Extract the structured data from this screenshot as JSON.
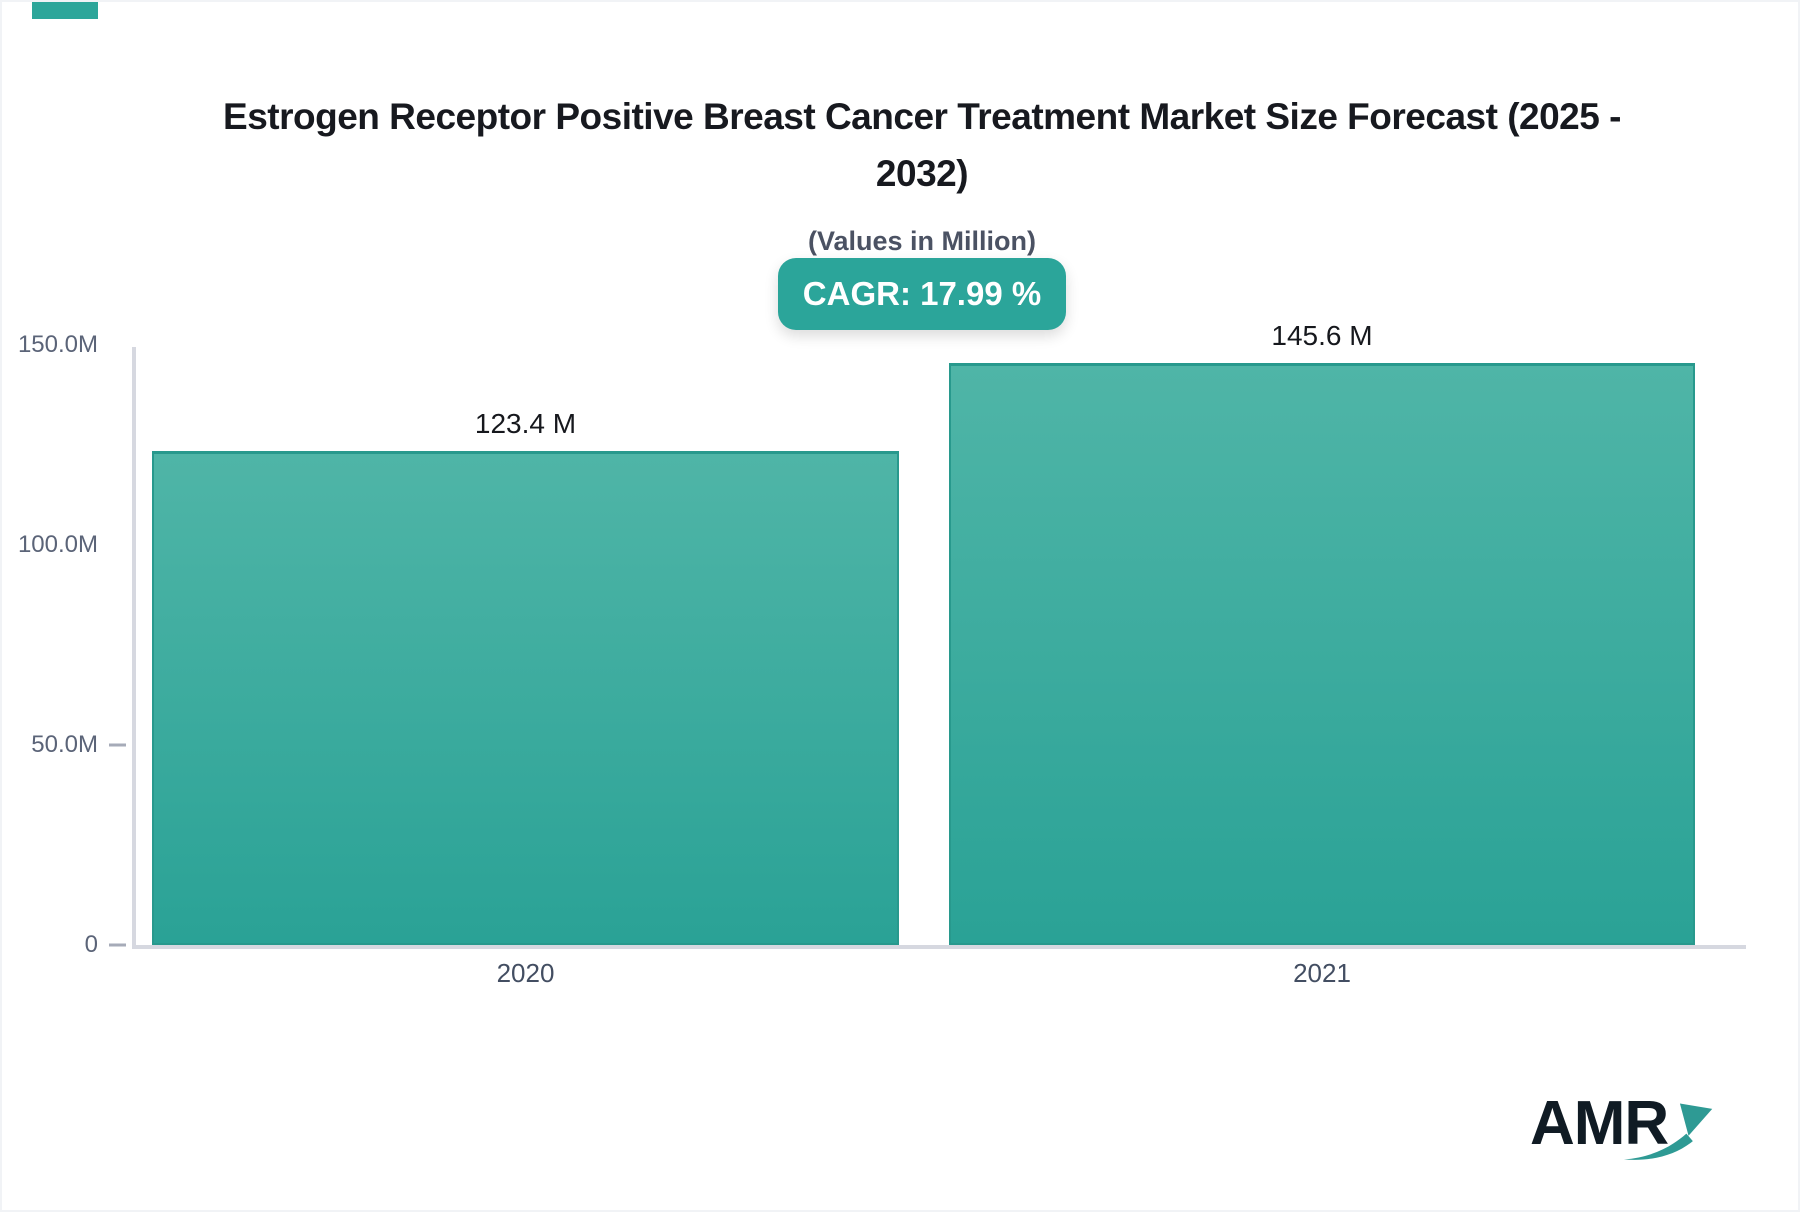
{
  "header": {
    "title_line1": "Estrogen Receptor Positive Breast Cancer Treatment Market Size Forecast (2025 -",
    "title_line2": "2032)",
    "subtitle": "(Values in Million)",
    "cagr_label": "CAGR: 17.99 %"
  },
  "chart_data": {
    "type": "bar",
    "title": "Estrogen Receptor Positive Breast Cancer Treatment Market Size Forecast (2025 - 2032)",
    "subtitle": "(Values in Million)",
    "cagr_percent": 17.99,
    "categories": [
      "2020",
      "2021"
    ],
    "values": [
      123.4,
      145.6
    ],
    "unit": "Million",
    "bar_labels": [
      "123.4 M",
      "145.6 M"
    ],
    "xlabel": "",
    "ylabel": "",
    "ylim": [
      0,
      150
    ],
    "yticks": [
      {
        "label": "150.0M",
        "value": 150,
        "dash": false
      },
      {
        "label": "100.0M",
        "value": 100,
        "dash": false
      },
      {
        "label": "50.0M",
        "value": 50,
        "dash": true
      },
      {
        "label": "0",
        "value": 0,
        "dash": true
      }
    ],
    "grid": false,
    "legend": "none",
    "bar_color_top": "#4FB5A7",
    "bar_color_bottom": "#2AA296",
    "bar_border_color": "#28998D",
    "badge_color": "#2BA59A"
  },
  "logo": {
    "text": "AMR",
    "arrow_color": "#2E9A94"
  }
}
